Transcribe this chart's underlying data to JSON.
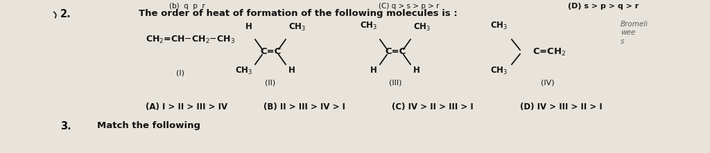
{
  "bg_color": "#e8e4dc",
  "question_num": "2.",
  "question_text": "The order of heat of formation of the following molecules is :",
  "top_partial_left": "(b)  q  p  r",
  "top_partial_mid": "(C) q > s > p > r",
  "top_partial_right": "(D) s > p > q > r",
  "mol1_formula": "CH₂=CH–CH₂–CH₃",
  "mol1_label": "(I)",
  "mol2_label": "(II)",
  "mol3_label": "(III)",
  "mol4_label": "(IV)",
  "answers": [
    "(A) I > II > III > IV",
    "(B) II > III > IV > I",
    "(C) IV > II > III > I",
    "(D) IV > III > II > I"
  ],
  "q3_num": "3.",
  "q3_text": "Match the following",
  "annotation": "Bromeli\nwee\ns",
  "font_size_q": 9.5,
  "font_size_mol": 8.5,
  "font_size_label": 8.0,
  "font_size_ans": 8.5,
  "font_size_top": 7.5,
  "text_color": "#111111",
  "line_color": "#111111",
  "line_lw": 1.3
}
